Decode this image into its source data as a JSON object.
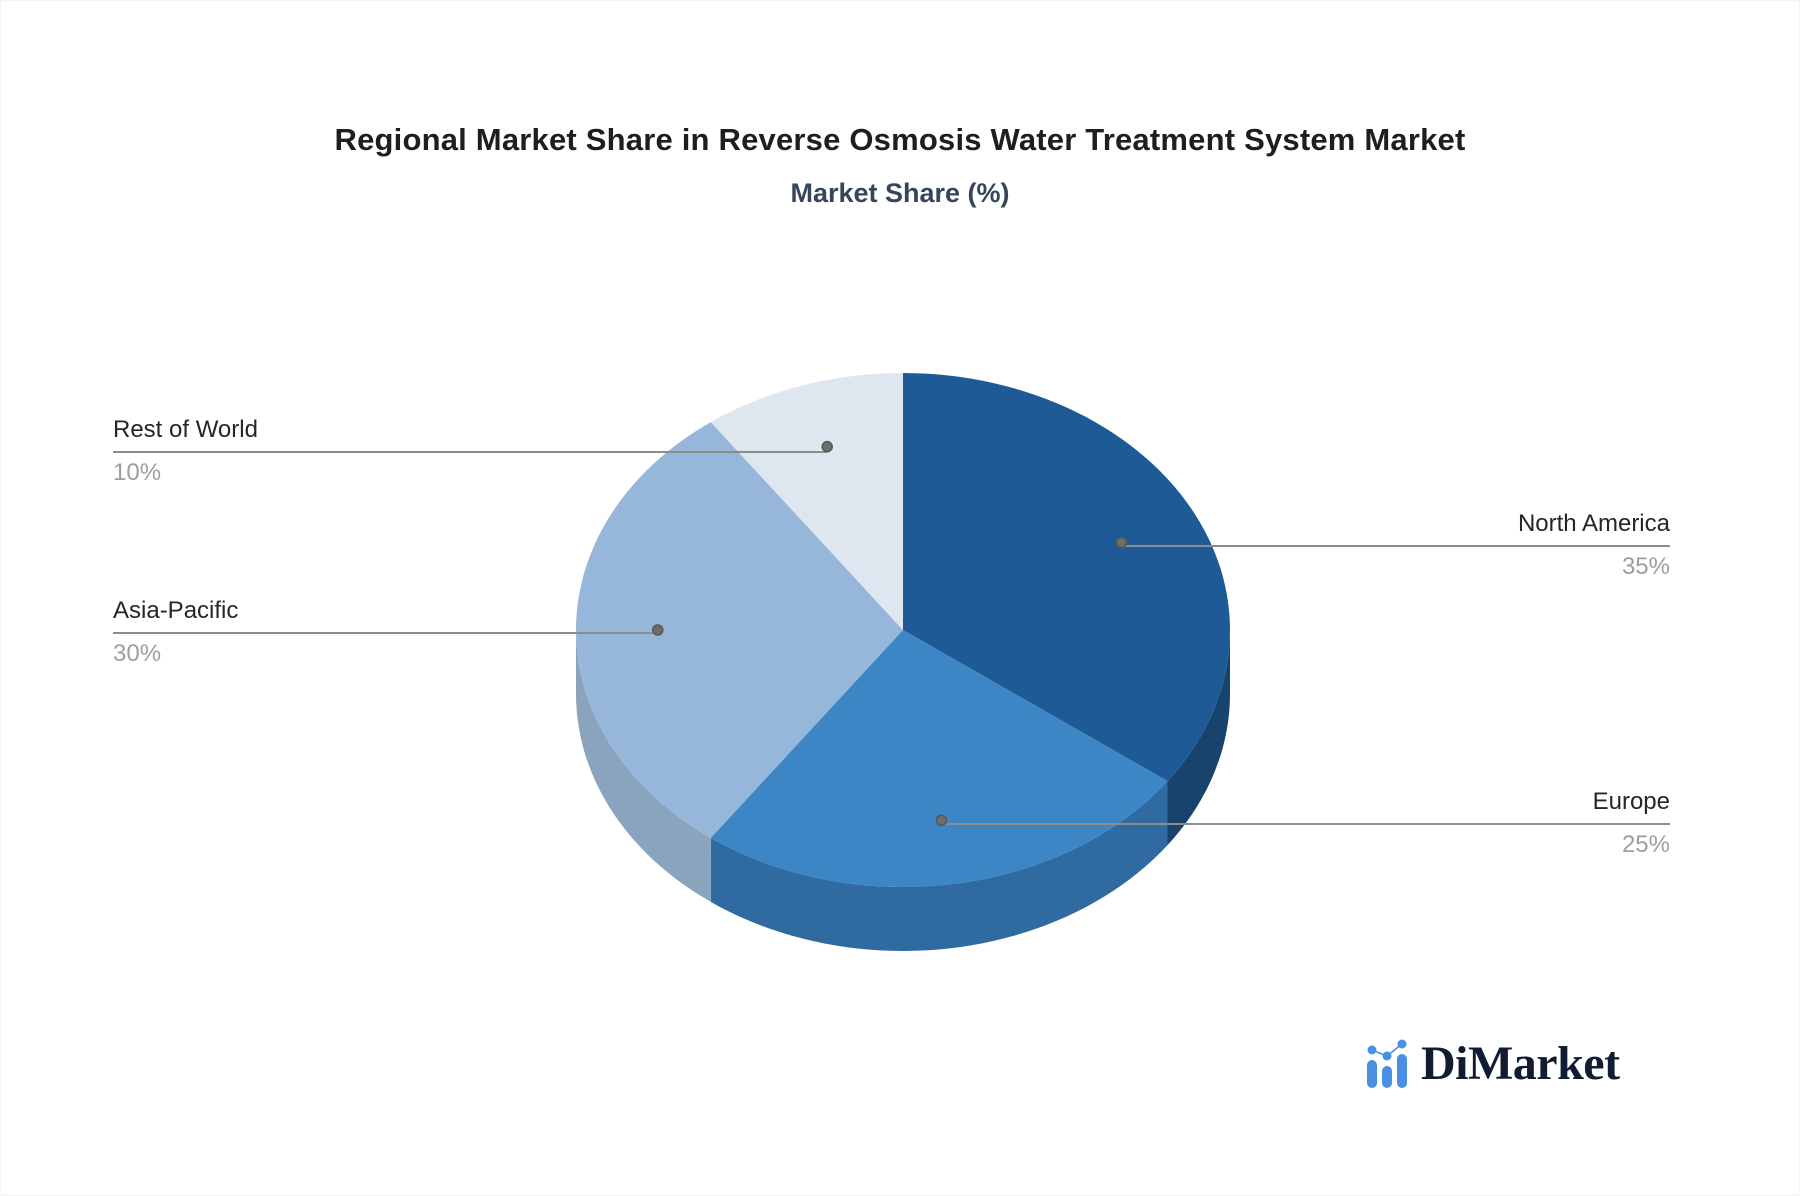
{
  "chart_data": {
    "type": "pie",
    "style": "3d",
    "title": "Regional Market Share in Reverse Osmosis Water Treatment System Market",
    "subtitle": "Market Share (%)",
    "unit": "%",
    "start_angle_deg": 0,
    "direction": "clockwise",
    "slices": [
      {
        "label": "North America",
        "value": 35,
        "display_value": "35%",
        "color": "#1e5b96",
        "side_color": "#18436d",
        "label_side": "right"
      },
      {
        "label": "Europe",
        "value": 25,
        "display_value": "25%",
        "color": "#3c86c6",
        "side_color": "#2f6aa0",
        "label_side": "right"
      },
      {
        "label": "Asia-Pacific",
        "value": 30,
        "display_value": "30%",
        "color": "#96b7d9",
        "side_color": "#8ba4be",
        "label_side": "left"
      },
      {
        "label": "Rest of World",
        "value": 10,
        "display_value": "10%",
        "color": "#dee6ef",
        "side_color": "#c3cedb",
        "label_side": "left"
      }
    ],
    "leader_line_color": "#8c8c8c",
    "leader_dot_color": "#6e6e6e",
    "label_color": "#262626",
    "value_color": "#9e9e9e",
    "legend_position": "none",
    "grid": false
  },
  "title_color": "#1e1e1e",
  "subtitle_color": "#37455a",
  "branding": {
    "logo_text": "DiMarket",
    "logo_icon": "bar-chart-icon",
    "logo_icon_color": "#4a90e2",
    "logo_text_color": "#111c33"
  }
}
